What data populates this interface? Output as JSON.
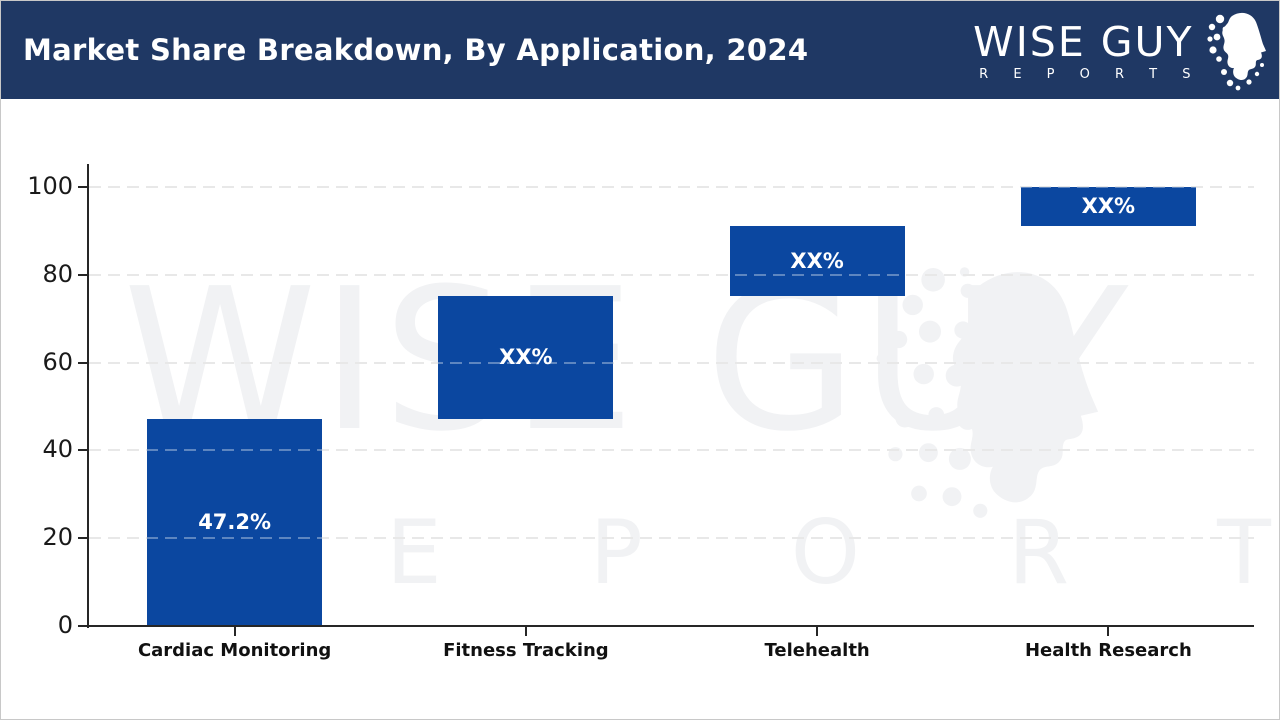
{
  "header": {
    "title": "Market Share Breakdown, By Application, 2024",
    "logo": {
      "line1": "WISE GUY",
      "line2": "R E P O R T S"
    }
  },
  "watermark": {
    "line1": "WISE GUY",
    "line2": "R E P O R T S"
  },
  "colors": {
    "header_bg": "#1f3864",
    "bar": "#0b47a0",
    "grid": "#dcdcdc",
    "axis": "#262626",
    "watermark": "#f1f2f4"
  },
  "chart_data": {
    "type": "bar",
    "subtype": "waterfall",
    "title": "Market Share Breakdown, By Application, 2024",
    "xlabel": "",
    "ylabel": "",
    "categories": [
      "Cardiac Monitoring",
      "Fitness Tracking",
      "Telehealth",
      "Health Research"
    ],
    "segments": [
      {
        "category": "Cardiac Monitoring",
        "start": 0,
        "end": 47.2,
        "label": "47.2%"
      },
      {
        "category": "Fitness Tracking",
        "start": 47.2,
        "end": 75.2,
        "label": "XX%"
      },
      {
        "category": "Telehealth",
        "start": 75.2,
        "end": 91.2,
        "label": "XX%"
      },
      {
        "category": "Health Research",
        "start": 91.2,
        "end": 100,
        "label": "XX%"
      }
    ],
    "yticks": [
      0,
      20,
      40,
      60,
      80,
      100
    ],
    "ylim": [
      0,
      105
    ],
    "grid": "dashed-horizontal",
    "legend": "none"
  }
}
